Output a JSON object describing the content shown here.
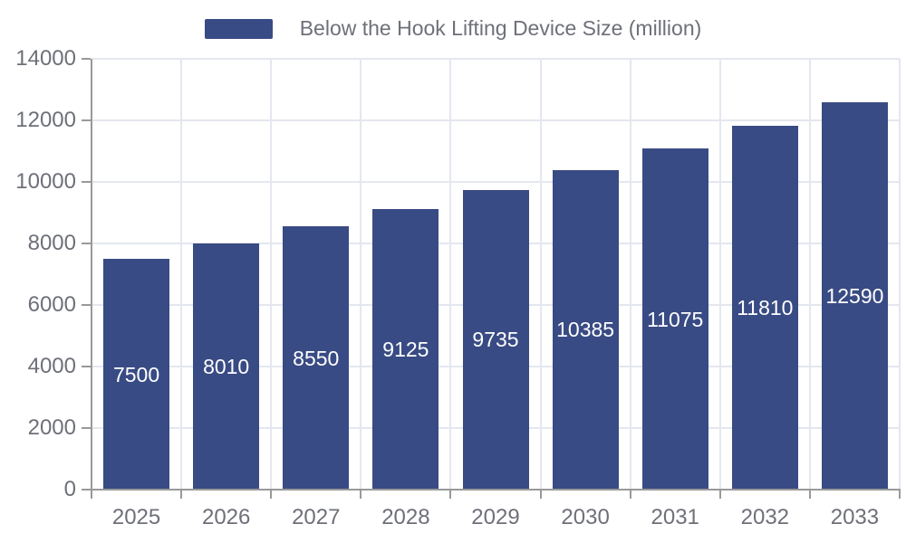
{
  "legend": {
    "label": "Below the Hook Lifting Device Size (million)",
    "swatch_color": "#394b84"
  },
  "chart_data": {
    "type": "bar",
    "title": "Below the Hook Lifting Device Size (million)",
    "categories": [
      "2025",
      "2026",
      "2027",
      "2028",
      "2029",
      "2030",
      "2031",
      "2032",
      "2033"
    ],
    "series": [
      {
        "name": "Below the Hook Lifting Device Size (million)",
        "values": [
          7500,
          8010,
          8550,
          9125,
          9735,
          10385,
          11075,
          11810,
          12590
        ]
      }
    ],
    "xlabel": "",
    "ylabel": "",
    "ylim": [
      0,
      14000
    ],
    "yticks": [
      0,
      2000,
      4000,
      6000,
      8000,
      10000,
      12000,
      14000
    ],
    "grid": true,
    "legend_position": "top",
    "value_labels_position": "inside-middle",
    "colors": {
      "bar": "#394b84",
      "value_label": "#ffffff",
      "axis_text": "#6e7079",
      "grid_line": "#e4e7ef",
      "axis_line": "#999999"
    }
  }
}
